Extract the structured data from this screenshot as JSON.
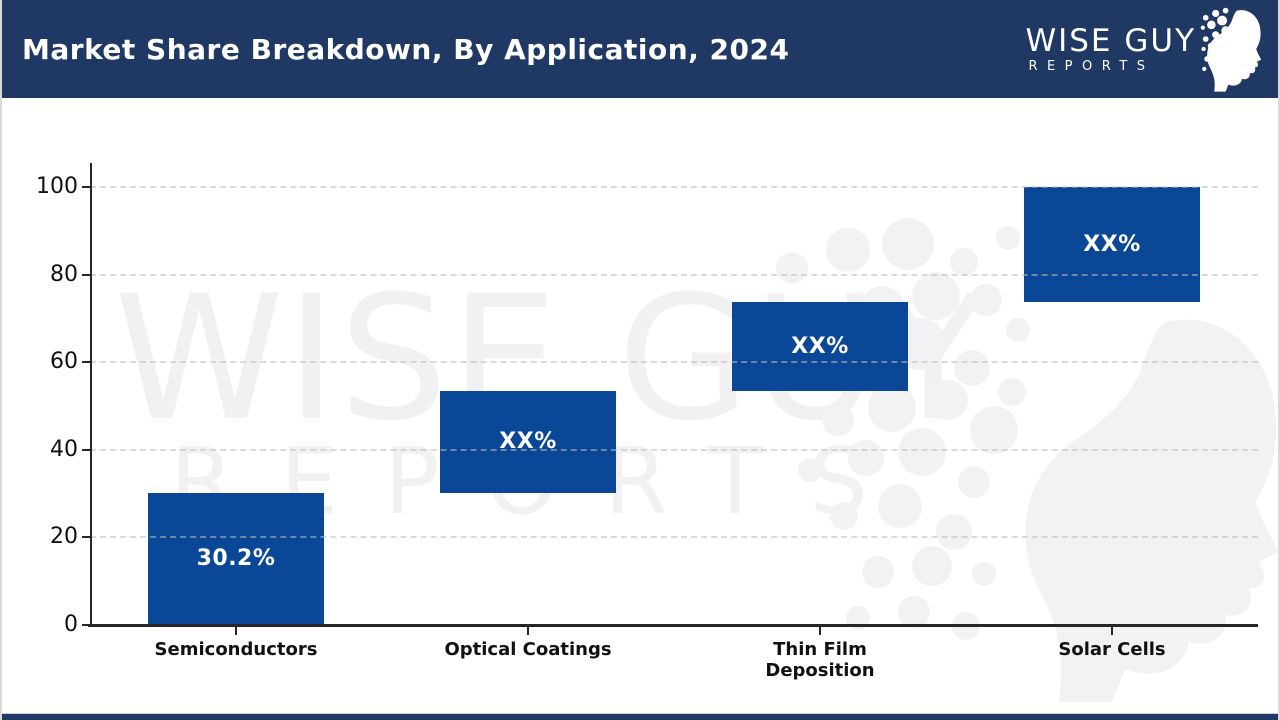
{
  "header": {
    "title": "Market Share Breakdown, By Application, 2024",
    "bg_color": "#1f3864",
    "logo": {
      "line1": "WISE GUY",
      "line2": "REPORTS"
    }
  },
  "watermark": {
    "line1": "WISE GUY",
    "line2": "REPORTS"
  },
  "chart_data": {
    "type": "bar",
    "subtype": "waterfall",
    "title": "Market Share Breakdown, By Application, 2024",
    "xlabel": "",
    "ylabel": "",
    "ylim": [
      0,
      100
    ],
    "yticks": [
      0,
      20,
      40,
      60,
      80,
      100
    ],
    "grid": "horizontal-dashed",
    "legend": "none",
    "bar_color": "#0a4796",
    "bars": [
      {
        "category": "Semiconductors",
        "start": 0,
        "end": 30.2,
        "label": "30.2%"
      },
      {
        "category": "Optical Coatings",
        "start": 30.2,
        "end": 53.5,
        "label": "XX%"
      },
      {
        "category": "Thin Film\nDeposition",
        "start": 53.5,
        "end": 73.7,
        "label": "XX%"
      },
      {
        "category": "Solar Cells",
        "start": 73.7,
        "end": 100,
        "label": "XX%"
      }
    ]
  }
}
